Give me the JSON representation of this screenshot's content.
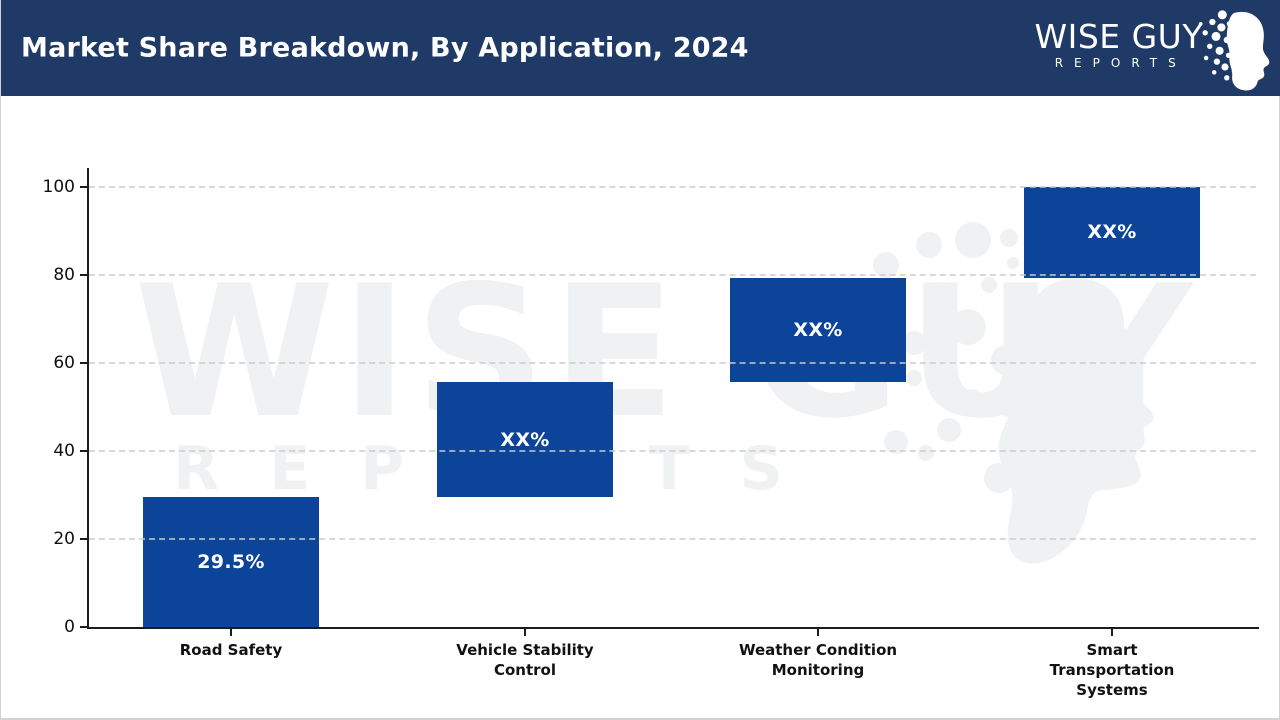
{
  "header": {
    "title": "Market Share Breakdown, By Application, 2024",
    "logo": {
      "line1": "WISE GUY",
      "line2": "REPORTS"
    }
  },
  "watermark": {
    "line1": "WISE GUY",
    "line2": "REPORTS"
  },
  "colors": {
    "header_bg": "#203a67",
    "bar_blue": "#0b4499",
    "value_label": "#ffffff",
    "gridline": "#cbcbcb",
    "axis": "#1c1c1c",
    "watermark": "#f0f1f3"
  },
  "chart_data": {
    "type": "bar",
    "subtype": "waterfall",
    "title": "Market Share Breakdown, By Application, 2024",
    "categories": [
      "Road Safety",
      "Vehicle Stability Control",
      "Weather Condition Monitoring",
      "Smart Transportation Systems"
    ],
    "category_lines": [
      [
        "Road Safety"
      ],
      [
        "Vehicle Stability",
        "Control"
      ],
      [
        "Weather Condition",
        "Monitoring"
      ],
      [
        "Smart",
        "Transportation",
        "Systems"
      ]
    ],
    "segments": [
      {
        "category": "Road Safety",
        "start": 0,
        "end": 29.5,
        "label": "29.5%"
      },
      {
        "category": "Vehicle Stability Control",
        "start": 29.5,
        "end": 55.7,
        "label": "XX%"
      },
      {
        "category": "Weather Condition Monitoring",
        "start": 55.7,
        "end": 79.4,
        "label": "XX%"
      },
      {
        "category": "Smart Transportation Systems",
        "start": 79.4,
        "end": 100,
        "label": "XX%"
      }
    ],
    "xlabel": "",
    "ylabel": "",
    "ylim": [
      0,
      100
    ],
    "yticks": [
      0,
      20,
      40,
      60,
      80,
      100
    ],
    "grid": "horizontal-dashed",
    "legend": "none",
    "bar_color": "#0b4499",
    "value_label_color": "#ffffff"
  }
}
